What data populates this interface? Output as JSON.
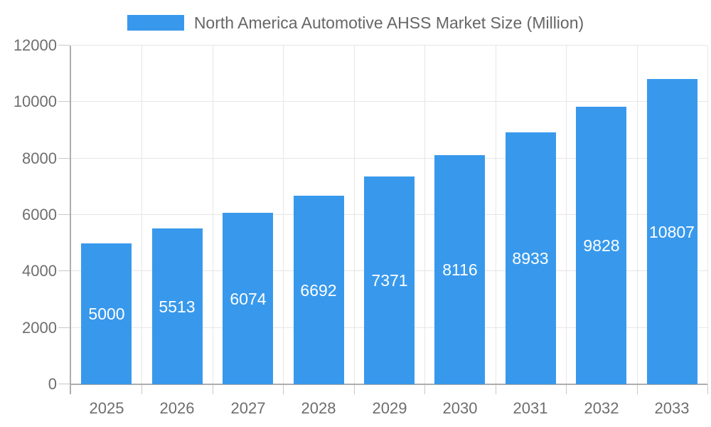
{
  "legend": {
    "label": "North America Automotive AHSS Market Size (Million)"
  },
  "colors": {
    "bar": "#3899EC",
    "grid": "#E6E6E6",
    "axis": "#ADADAD",
    "tick": "#C8C8C8",
    "tick_label": "#6E6E6E",
    "title_text": "#666666",
    "value_label": "#FFFFFF",
    "background": "#FFFFFF"
  },
  "chart_data": {
    "type": "bar",
    "title": "North America Automotive AHSS Market Size (Million)",
    "series_name": "North America Automotive AHSS Market Size (Million)",
    "categories": [
      "2025",
      "2026",
      "2027",
      "2028",
      "2029",
      "2030",
      "2031",
      "2032",
      "2033"
    ],
    "values": [
      5000,
      5513,
      6074,
      6692,
      7371,
      8116,
      8933,
      9828,
      10807
    ],
    "xlabel": "",
    "ylabel": "",
    "ylim": [
      0,
      12000
    ],
    "yticks": [
      0,
      2000,
      4000,
      6000,
      8000,
      10000,
      12000
    ],
    "grid": "on",
    "legend_position": "top-center",
    "value_labels": "inside-center-white"
  }
}
